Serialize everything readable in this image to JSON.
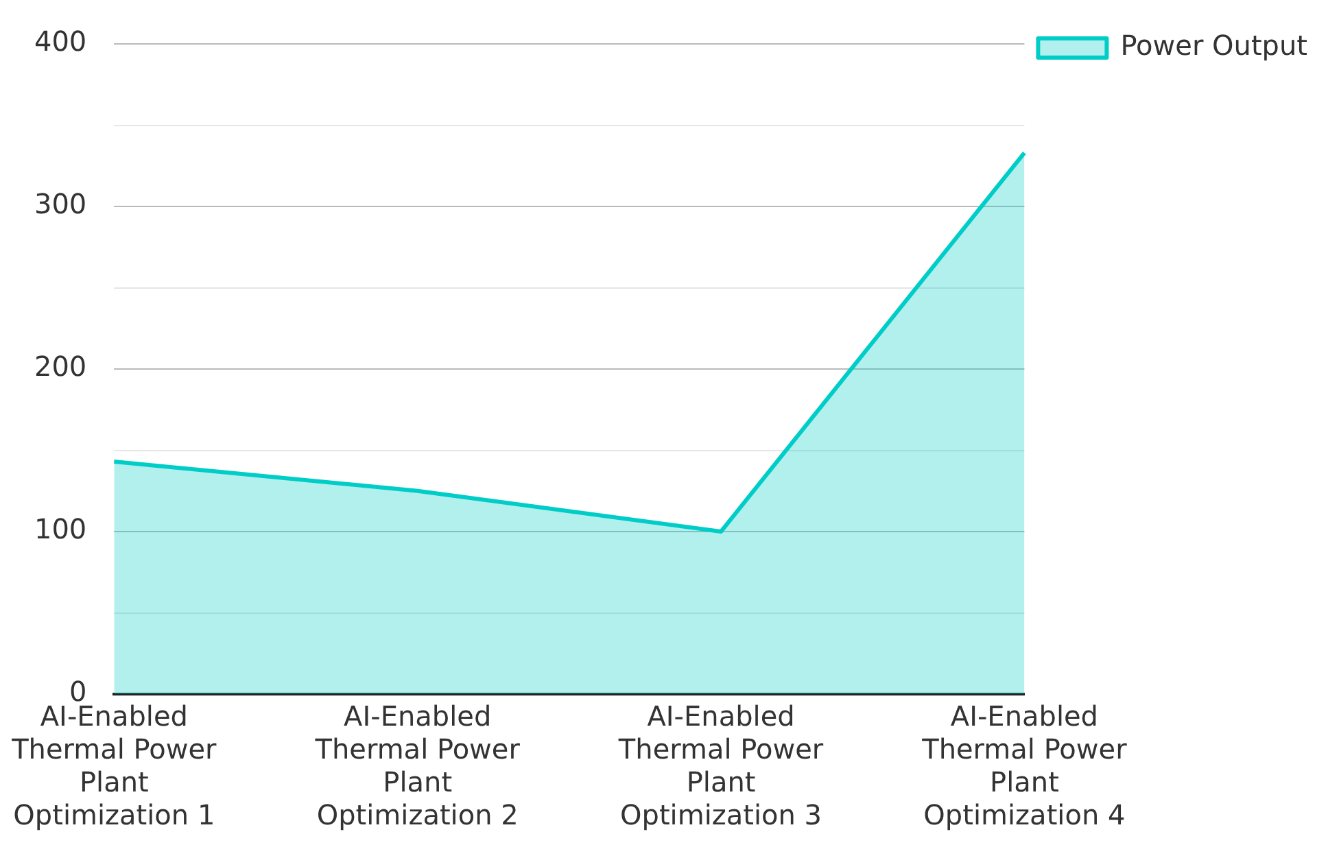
{
  "chart_data": {
    "type": "area",
    "categories": [
      "AI-Enabled Thermal Power Plant Optimization 1",
      "AI-Enabled Thermal Power Plant Optimization 2",
      "AI-Enabled Thermal Power Plant Optimization 3",
      "AI-Enabled Thermal Power Plant Optimization 4"
    ],
    "series": [
      {
        "name": "Power Output",
        "color": "#00cdc8",
        "values": [
          143,
          125,
          100,
          333
        ]
      }
    ],
    "ylim": [
      0,
      400
    ],
    "yticks": [
      0,
      {
        "value": 50,
        "label": null
      },
      100,
      {
        "value": 150,
        "label": null
      },
      200,
      {
        "value": 250,
        "label": null
      },
      300,
      {
        "value": 350,
        "label": null
      },
      400
    ],
    "grid": "y",
    "legend": "top right",
    "marker": "none"
  }
}
